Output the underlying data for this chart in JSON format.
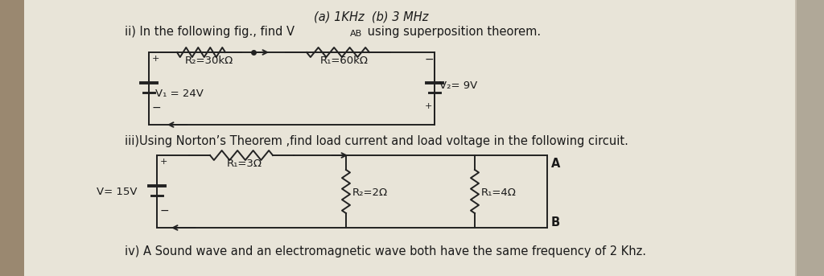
{
  "bg_color": "#c8bfb0",
  "paper_color": "#e8e4d8",
  "text_color": "#1a1a1a",
  "line_color": "#222222",
  "font_size_main": 10.5,
  "font_size_label": 9.5,
  "line1": "(a) 1KHz  (b) 3 MHz",
  "line2a": "ii) In the following fig., find V",
  "line2b": "AB",
  "line2c": " using superposition theorem.",
  "line3": "iii)Using Norton’s Theorem ,find load current and load voltage in the following circuit.",
  "line4": "iv) A Sound wave and an electromagnetic wave both have the same frequency of 2 Khz.",
  "c1_r2_label": "R₂=30kΩ",
  "c1_r1_label": "R₁=60kΩ",
  "c1_v1_label": "V₁ = 24V",
  "c1_v2_label": "V₂= 9V",
  "c2_v_label": "V= 15V",
  "c2_r1_label": "R₁=3Ω",
  "c2_r2_label": "R₂=2Ω",
  "c2_rl_label": "R₁=4Ω",
  "c2_a_label": "A",
  "c2_b_label": "B"
}
